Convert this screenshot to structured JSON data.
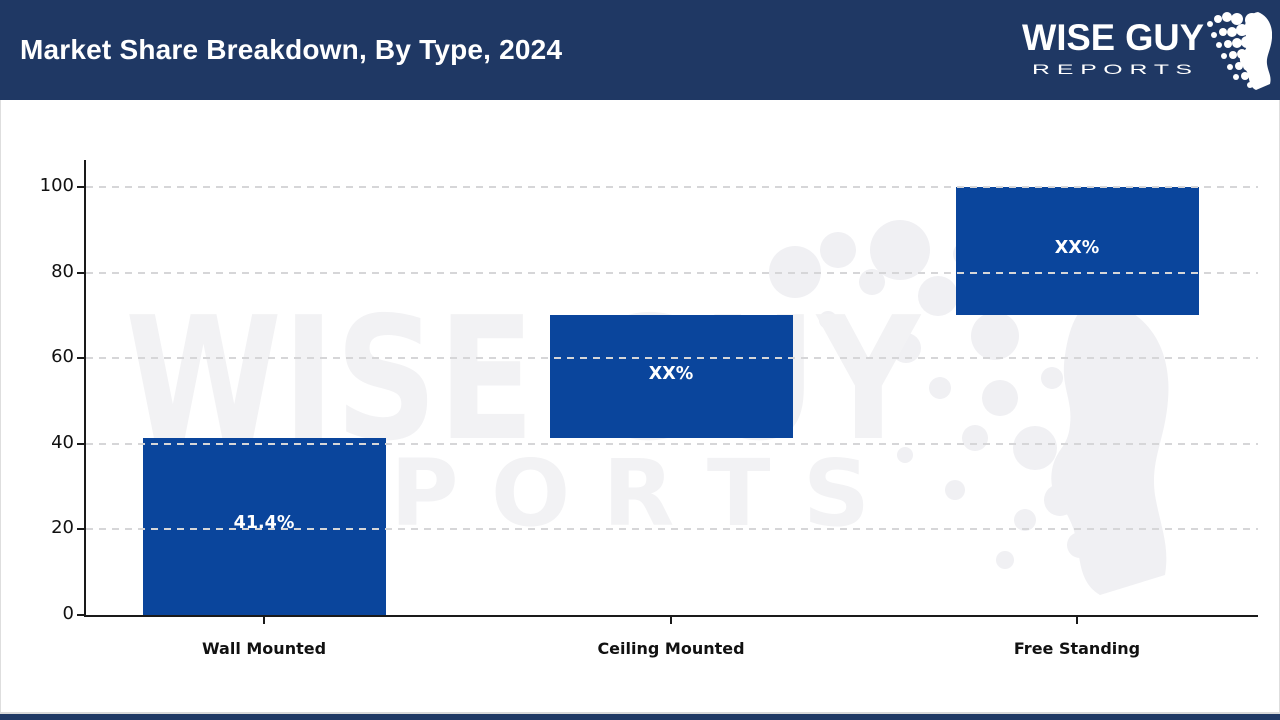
{
  "header": {
    "title": "Market Share Breakdown, By Type, 2024"
  },
  "logo": {
    "line1": "WISE GUY",
    "line2": "R E P O R T S"
  },
  "watermark": {
    "line1": "WISE GUY",
    "line2": "R E P O R T S"
  },
  "chart_data": {
    "type": "bar",
    "subtype": "waterfall-segment-bars",
    "title": "Market Share Breakdown, By Type, 2024",
    "categories": [
      "Wall Mounted",
      "Ceiling Mounted",
      "Free Standing"
    ],
    "segments": [
      {
        "category": "Wall Mounted",
        "start": 0,
        "end": 41.4,
        "label": "41.4%"
      },
      {
        "category": "Ceiling Mounted",
        "start": 41.4,
        "end": 70,
        "label": "XX%"
      },
      {
        "category": "Free Standing",
        "start": 70,
        "end": 100,
        "label": "XX%"
      }
    ],
    "ylim": [
      0,
      100
    ],
    "yticks": [
      0,
      20,
      40,
      60,
      80,
      100
    ],
    "xlabel": "",
    "ylabel": "",
    "grid": "horizontal-dashed",
    "legend": "none",
    "bar_color": "#0a459c",
    "bar_label_color": "#ffffff"
  },
  "colors": {
    "header_bg": "#1f3864",
    "footer_bg": "#1f3864",
    "axis": "#1a1a1a",
    "gridline": "#d6d6d8",
    "watermark": "#f2f2f4"
  }
}
